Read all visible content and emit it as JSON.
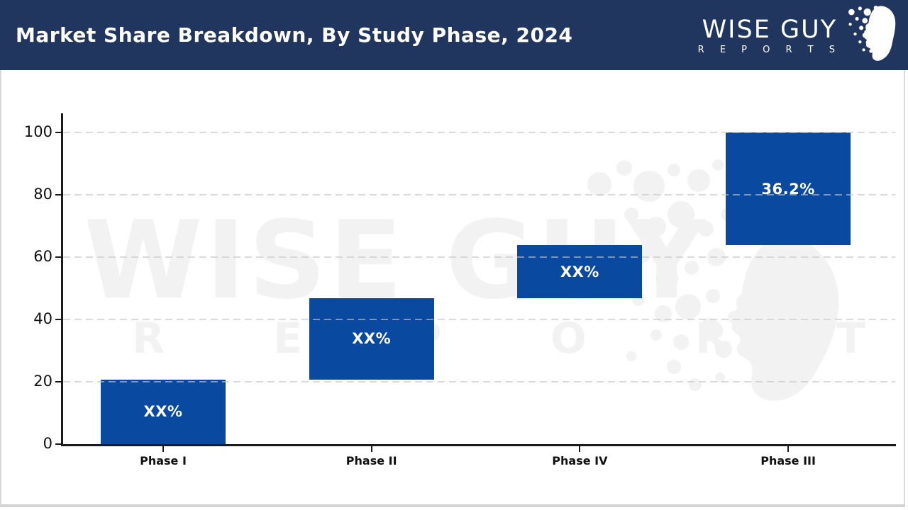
{
  "header": {
    "title": "Market Share Breakdown, By Study Phase, 2024",
    "bg_color": "#21365f",
    "logo": {
      "line1": "WISE GUY",
      "line2": "R E P O R T S",
      "icon": "dotted-face-icon"
    }
  },
  "watermark": {
    "line1": "WISE GUY",
    "line2": "REPORTS",
    "icon": "dotted-face-watermark",
    "color": "#f2f2f2"
  },
  "chart_data": {
    "type": "bar",
    "subtype": "waterfall",
    "title": "Market Share Breakdown, By Study Phase, 2024",
    "categories": [
      "Phase I",
      "Phase II",
      "Phase IV",
      "Phase III"
    ],
    "segments": [
      {
        "category": "Phase I",
        "start": 0,
        "end": 20.7,
        "value": 20.7,
        "label": "XX%"
      },
      {
        "category": "Phase II",
        "start": 20.7,
        "end": 46.8,
        "value": 26.1,
        "label": "XX%"
      },
      {
        "category": "Phase IV",
        "start": 46.8,
        "end": 63.8,
        "value": 17.0,
        "label": "XX%"
      },
      {
        "category": "Phase III",
        "start": 63.8,
        "end": 100,
        "value": 36.2,
        "label": "36.2%"
      }
    ],
    "yticks": [
      0,
      20,
      40,
      60,
      80,
      100
    ],
    "ylim": [
      0,
      106
    ],
    "xlabel": "",
    "ylabel": "",
    "grid": "horizontal-dashed",
    "bar_color": "#0a49a0",
    "bar_label_color": "#ffffff",
    "legend": "none"
  }
}
